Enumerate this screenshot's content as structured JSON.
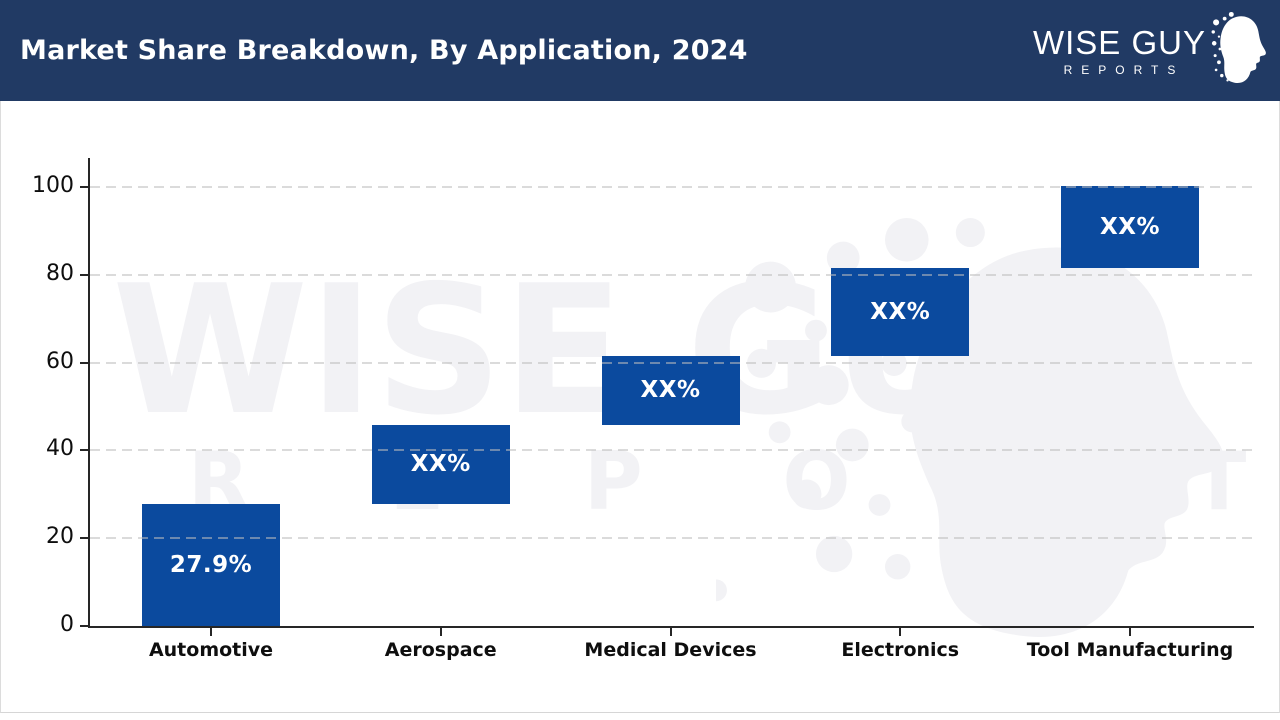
{
  "header": {
    "title": "Market Share Breakdown, By Application, 2024",
    "logo": {
      "line1": "WISE GUY",
      "line2": "REPORTS",
      "icon": "dotted-face-profile"
    }
  },
  "watermark": {
    "line1": "WISE GUY",
    "line2": "R E P O R T S"
  },
  "chart_data": {
    "type": "bar",
    "subtype": "waterfall",
    "title": "Market Share Breakdown, By Application, 2024",
    "categories": [
      "Automotive",
      "Aerospace",
      "Medical Devices",
      "Electronics",
      "Tool Manufacturing"
    ],
    "segments": [
      {
        "category": "Automotive",
        "start": 0,
        "end": 27.9,
        "label": "27.9%"
      },
      {
        "category": "Aerospace",
        "start": 27.9,
        "end": 45.8,
        "label": "XX%"
      },
      {
        "category": "Medical Devices",
        "start": 45.8,
        "end": 61.5,
        "label": "XX%"
      },
      {
        "category": "Electronics",
        "start": 61.5,
        "end": 81.5,
        "label": "XX%"
      },
      {
        "category": "Tool Manufacturing",
        "start": 81.5,
        "end": 100.3,
        "label": "XX%"
      }
    ],
    "y_ticks": [
      0,
      20,
      40,
      60,
      80,
      100
    ],
    "ylim": [
      0,
      106
    ],
    "xlabel": "",
    "ylabel": "",
    "grid": "horizontal-dashed",
    "legend": "none",
    "bar_color": "#0B4A9E",
    "bar_label_color": "#ffffff",
    "header_color": "#213A64",
    "gridline_color": "#d9d9d9",
    "axis_color": "#262626"
  }
}
